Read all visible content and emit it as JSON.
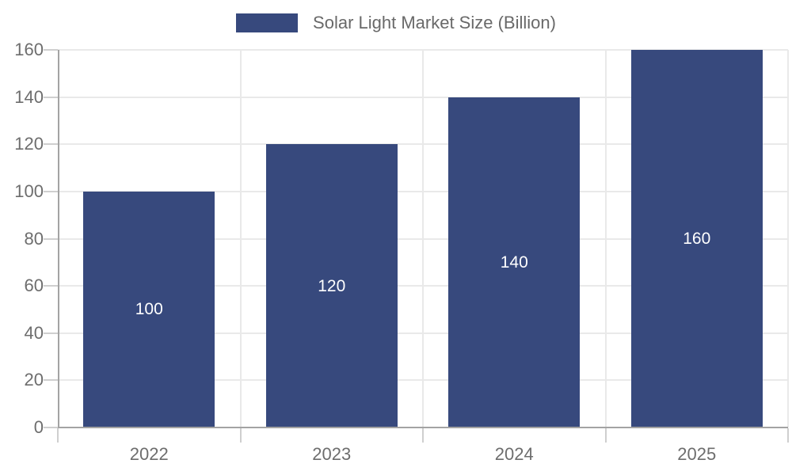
{
  "chart_data": {
    "type": "bar",
    "title": "Solar Light Market Size (Billion)",
    "categories": [
      "2022",
      "2023",
      "2024",
      "2025"
    ],
    "values": [
      100,
      120,
      140,
      160
    ],
    "xlabel": "",
    "ylabel": "",
    "ylim": [
      0,
      160
    ],
    "ytick_step": 20,
    "yticks": [
      0,
      20,
      40,
      60,
      80,
      100,
      120,
      140,
      160
    ],
    "grid": true,
    "legend_position": "top-center",
    "value_labels": "inside-center",
    "colors": {
      "bar": "#37497d",
      "bar_value_label": "#ffffff",
      "axis_label_text": "#6d6d6d",
      "legend_text": "#696969",
      "axis_line": "#a3a3a3",
      "gridline": "#e9e9e9",
      "tick": "#cfcfcf",
      "background": "#ffffff"
    }
  }
}
